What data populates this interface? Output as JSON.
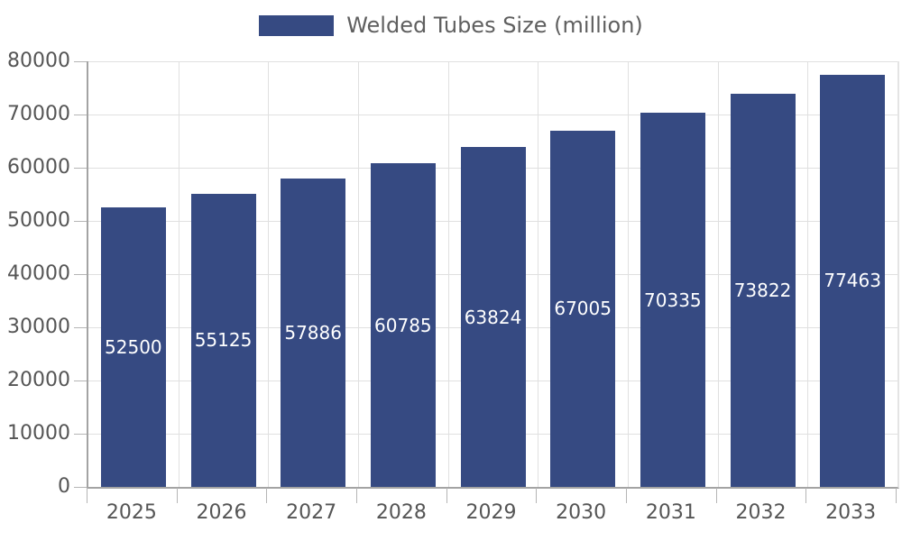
{
  "legend": {
    "label": "Welded Tubes Size (million)"
  },
  "colors": {
    "bar": "#364a82",
    "grid": "#e0e0e0",
    "axis": "#a3a3a3",
    "tick_label": "#555555",
    "legend_text": "#5f5f5f",
    "value_label": "#ffffff"
  },
  "chart_data": {
    "type": "bar",
    "title": "Welded Tubes Size (million)",
    "categories": [
      "2025",
      "2026",
      "2027",
      "2028",
      "2029",
      "2030",
      "2031",
      "2032",
      "2033"
    ],
    "values": [
      52500,
      55125,
      57886,
      60785,
      63824,
      67005,
      70335,
      73822,
      77463
    ],
    "series_name": "Welded Tubes Size (million)",
    "xlabel": "",
    "ylabel": "",
    "ylim": [
      0,
      80000
    ],
    "ytick_step": 10000,
    "ytick_labels": [
      "0",
      "10000",
      "20000",
      "30000",
      "40000",
      "50000",
      "60000",
      "70000",
      "80000"
    ],
    "grid": true,
    "legend_position": "top-center",
    "value_labels_inside_bars": true
  }
}
